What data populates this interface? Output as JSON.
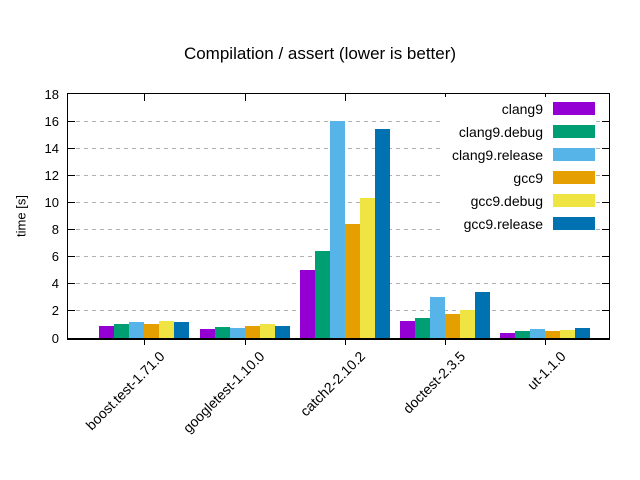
{
  "title": "Compilation / assert (lower is better)",
  "ylabel": "time [s]",
  "background_color": "#ffffff",
  "grid_color": "#b0b0b0",
  "axis_color": "#000000",
  "chart_data": {
    "type": "bar",
    "title": "Compilation / assert (lower is better)",
    "xlabel": "",
    "ylabel": "time [s]",
    "ylim": [
      0,
      18
    ],
    "yticks": [
      0,
      2,
      4,
      6,
      8,
      10,
      12,
      14,
      16,
      18
    ],
    "grid": "horizontal dashed",
    "legend_position": "top-right inside",
    "categories": [
      "boost.test-1.71.0",
      "googletest-1.10.0",
      "catch2-2.10.2",
      "doctest-2.3.5",
      "ut-1.1.0"
    ],
    "series": [
      {
        "name": "clang9",
        "color": "#9400d3",
        "values": [
          0.9,
          0.7,
          5.0,
          1.25,
          0.4
        ]
      },
      {
        "name": "clang9.debug",
        "color": "#009e73",
        "values": [
          1.05,
          0.8,
          6.4,
          1.45,
          0.5
        ]
      },
      {
        "name": "clang9.release",
        "color": "#56b4e9",
        "values": [
          1.15,
          0.75,
          16.0,
          3.05,
          0.65
        ]
      },
      {
        "name": "gcc9",
        "color": "#e69f00",
        "values": [
          1.0,
          0.85,
          8.4,
          1.75,
          0.5
        ]
      },
      {
        "name": "gcc9.debug",
        "color": "#f0e442",
        "values": [
          1.25,
          1.05,
          10.3,
          2.1,
          0.6
        ]
      },
      {
        "name": "gcc9.release",
        "color": "#0072b2",
        "values": [
          1.2,
          0.9,
          15.4,
          3.4,
          0.75
        ]
      }
    ]
  }
}
